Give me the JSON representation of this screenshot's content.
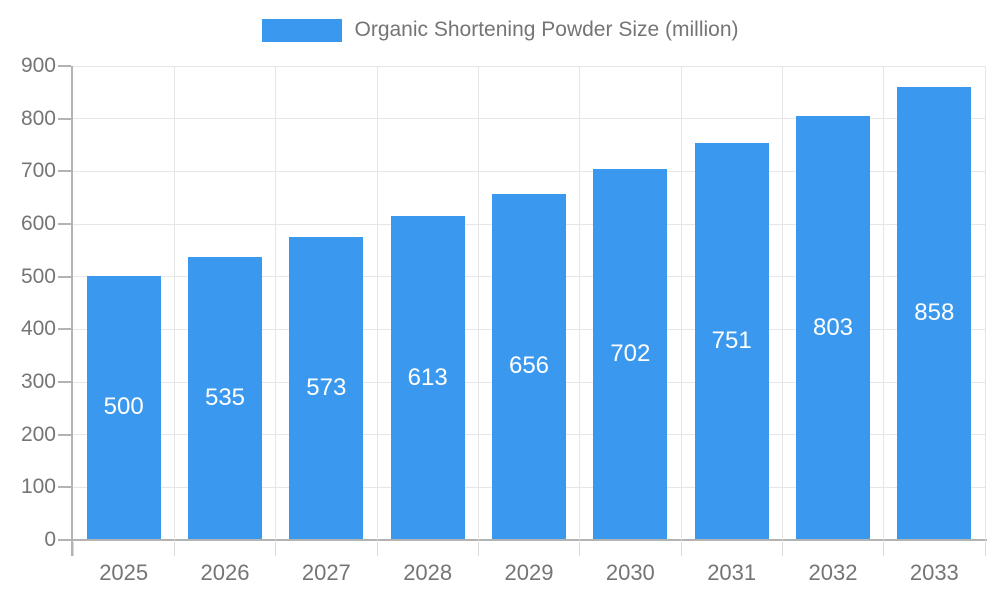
{
  "chart_data": {
    "type": "bar",
    "title": "Organic Shortening Powder Size (million)",
    "categories": [
      "2025",
      "2026",
      "2027",
      "2028",
      "2029",
      "2030",
      "2031",
      "2032",
      "2033"
    ],
    "series": [
      {
        "name": "Organic Shortening Powder Size (million)",
        "values": [
          500,
          535,
          573,
          613,
          656,
          702,
          751,
          803,
          858
        ]
      }
    ],
    "xlabel": "",
    "ylabel": "",
    "ylim": [
      0,
      900
    ],
    "yticks": [
      0,
      100,
      200,
      300,
      400,
      500,
      600,
      700,
      800,
      900
    ],
    "grid": true,
    "legend_position": "top",
    "value_labels": "inside-center",
    "colors": {
      "bar": "#3a99ee",
      "value_label": "#ffffff",
      "axis_text": "#757575",
      "grid_line": "#e6e6e6",
      "axis_line": "#b3b3b3",
      "background": "#ffffff"
    }
  }
}
